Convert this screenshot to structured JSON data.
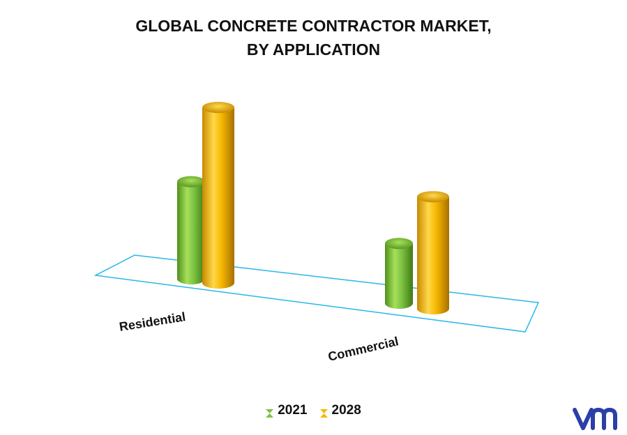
{
  "chart_data": {
    "type": "bar",
    "title": "GLOBAL CONCRETE CONTRACTOR MARKET,",
    "subtitle": "BY APPLICATION",
    "categories": [
      "Residential",
      "Commercial"
    ],
    "series": [
      {
        "name": "2021",
        "color": "#7dc242",
        "values": [
          26,
          16
        ]
      },
      {
        "name": "2028",
        "color": "#f5b800",
        "values": [
          47,
          30
        ]
      }
    ],
    "ylim": [
      0,
      50
    ],
    "legend_position": "bottom",
    "grid": false,
    "style": "3d-cylinder"
  },
  "logo": {
    "name": "vmr-logo",
    "color": "#2a3fa8"
  }
}
